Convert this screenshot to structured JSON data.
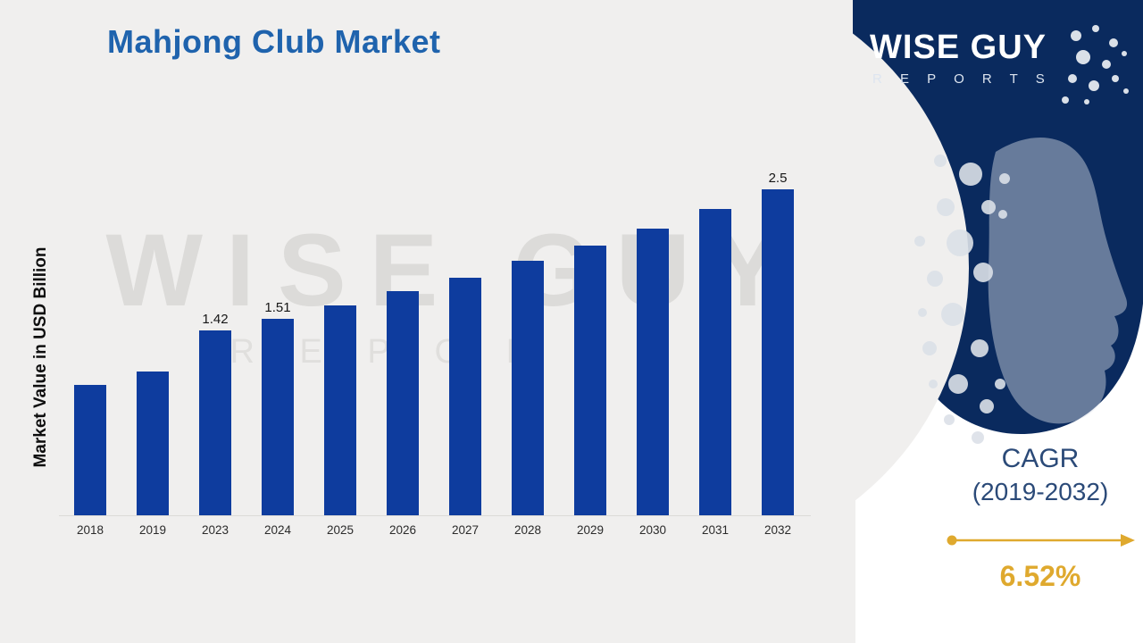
{
  "title": "Mahjong Club Market",
  "title_color": "#1f63ad",
  "brand": {
    "logo_line1": "WISE GUY",
    "logo_line2": "R E P O R T S",
    "panel_color": "#0a2a5e"
  },
  "watermark": {
    "line1": "WISE GUY",
    "line2": "R E P O R T S"
  },
  "cagr": {
    "label": "CAGR",
    "period": "(2019-2032)",
    "value": "6.52%",
    "accent_color": "#dfa92e",
    "text_color": "#2b4a78"
  },
  "chart_data": {
    "type": "bar",
    "title": "Mahjong Club Market",
    "xlabel": "",
    "ylabel": "Market Value in USD Billion",
    "unit": "USD Billion",
    "bar_color": "#0e3c9e",
    "ylim": [
      0,
      2.5
    ],
    "grid": false,
    "legend": false,
    "categories": [
      "2018",
      "2019",
      "2023",
      "2024",
      "2025",
      "2026",
      "2027",
      "2028",
      "2029",
      "2030",
      "2031",
      "2032"
    ],
    "values": [
      1.0,
      1.1,
      1.42,
      1.51,
      1.61,
      1.72,
      1.82,
      1.95,
      2.07,
      2.2,
      2.35,
      2.5
    ],
    "points": [
      {
        "year": "2018",
        "value": 1.0,
        "label": null
      },
      {
        "year": "2019",
        "value": 1.1,
        "label": null
      },
      {
        "year": "2023",
        "value": 1.42,
        "label": "1.42"
      },
      {
        "year": "2024",
        "value": 1.51,
        "label": "1.51"
      },
      {
        "year": "2025",
        "value": 1.61,
        "label": null
      },
      {
        "year": "2026",
        "value": 1.72,
        "label": null
      },
      {
        "year": "2027",
        "value": 1.82,
        "label": null
      },
      {
        "year": "2028",
        "value": 1.95,
        "label": null
      },
      {
        "year": "2029",
        "value": 2.07,
        "label": null
      },
      {
        "year": "2030",
        "value": 2.2,
        "label": null
      },
      {
        "year": "2031",
        "value": 2.35,
        "label": null
      },
      {
        "year": "2032",
        "value": 2.5,
        "label": "2.5"
      }
    ]
  }
}
